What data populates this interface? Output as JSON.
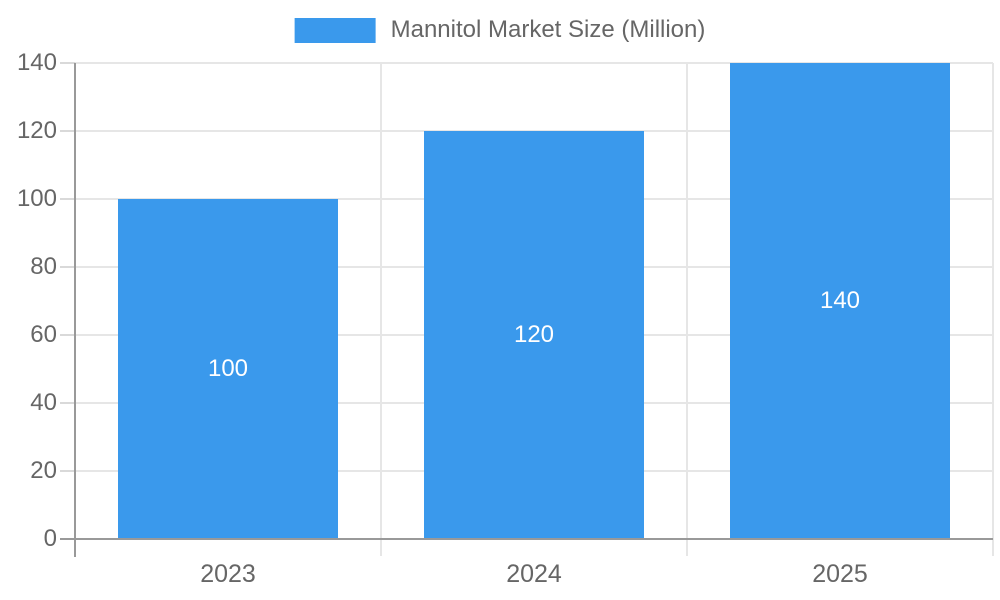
{
  "chart_data": {
    "type": "bar",
    "categories": [
      "2023",
      "2024",
      "2025"
    ],
    "series": [
      {
        "name": "Mannitol Market Size (Million)",
        "values": [
          100,
          120,
          140
        ]
      }
    ],
    "data_labels": [
      "100",
      "120",
      "140"
    ],
    "y_axis": {
      "min": 0,
      "max": 140,
      "tick_step": 20,
      "tick_labels": [
        "0",
        "20",
        "40",
        "60",
        "80",
        "100",
        "120",
        "140"
      ]
    },
    "legend_position": "top",
    "grid": true,
    "colors": {
      "bar": "#3A99EC",
      "axis_line": "#999999",
      "gridline": "#e6e6e6",
      "tick": "#d9d9d9",
      "axis_label": "#666666",
      "legend_text": "#666666",
      "data_label": "#ffffff",
      "background": "#ffffff"
    }
  }
}
